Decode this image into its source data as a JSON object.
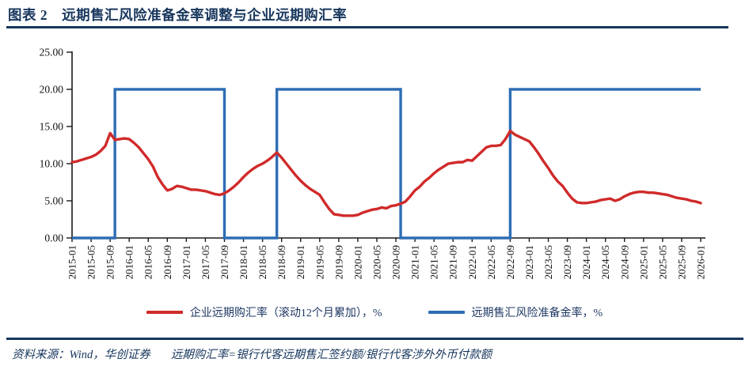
{
  "header": {
    "title": "图表 2　远期售汇风险准备金率调整与企业远期购汇率"
  },
  "legend": [
    {
      "label": "企业远期购汇率（滚动12个月累加），%",
      "color": "#d02a2a"
    },
    {
      "label": "远期售汇风险准备金率，%",
      "color": "#2e6db4"
    }
  ],
  "footer": {
    "source": "资料来源：Wind，华创证券",
    "note": "远期购汇率=银行代客远期售汇签约额/银行代客涉外外币付款额"
  },
  "colors": {
    "navy": "#17365d",
    "red": "#d02a2a",
    "blue": "#2e6db4",
    "axis": "#1a1a1a"
  },
  "chart_data": {
    "type": "line",
    "title": "图表 2　远期售汇风险准备金率调整与企业远期购汇率",
    "xlabel": "",
    "ylabel": "",
    "x_start": "2015-01",
    "x_end": "2026-01",
    "frequency": "monthly",
    "ylim": [
      0,
      25
    ],
    "grid": false,
    "legend_position": "bottom",
    "y_tick_labels": [
      "0.00",
      "5.00",
      "10.00",
      "15.00",
      "20.00",
      "25.00"
    ],
    "y_tick_values": [
      0,
      5,
      10,
      15,
      20,
      25
    ],
    "x_tick_labels": [
      "2015-01",
      "2015-05",
      "2015-09",
      "2016-01",
      "2016-05",
      "2016-09",
      "2017-01",
      "2017-05",
      "2017-09",
      "2018-01",
      "2018-05",
      "2018-09",
      "2019-01",
      "2019-05",
      "2019-09",
      "2020-01",
      "2020-05",
      "2020-09",
      "2021-01",
      "2021-05",
      "2021-09",
      "2022-01",
      "2022-05",
      "2022-09",
      "2023-01",
      "2023-05",
      "2023-09",
      "2024-01",
      "2024-05",
      "2024-09",
      "2025-01",
      "2025-05",
      "2025-09",
      "2026-01"
    ],
    "series": [
      {
        "name": "企业远期购汇率（滚动12个月累加），%",
        "color": "#d02a2a",
        "type": "line",
        "values": [
          10.2,
          10.3,
          10.5,
          10.7,
          10.9,
          11.2,
          11.7,
          12.4,
          14.1,
          13.2,
          13.3,
          13.4,
          13.3,
          12.8,
          12.2,
          11.4,
          10.6,
          9.6,
          8.2,
          7.2,
          6.4,
          6.6,
          7.0,
          6.9,
          6.7,
          6.5,
          6.5,
          6.4,
          6.3,
          6.1,
          5.9,
          5.8,
          6.0,
          6.4,
          6.9,
          7.5,
          8.2,
          8.8,
          9.3,
          9.7,
          10.0,
          10.4,
          10.9,
          11.5,
          10.8,
          10.0,
          9.2,
          8.4,
          7.7,
          7.1,
          6.6,
          6.2,
          5.8,
          4.8,
          3.9,
          3.2,
          3.1,
          3.0,
          3.0,
          3.0,
          3.1,
          3.4,
          3.6,
          3.8,
          3.9,
          4.1,
          4.0,
          4.3,
          4.4,
          4.6,
          4.9,
          5.6,
          6.4,
          6.9,
          7.6,
          8.1,
          8.7,
          9.2,
          9.6,
          10.0,
          10.1,
          10.2,
          10.2,
          10.5,
          10.4,
          11.0,
          11.6,
          12.2,
          12.4,
          12.4,
          12.5,
          13.3,
          14.4,
          13.9,
          13.6,
          13.3,
          13.0,
          12.2,
          11.3,
          10.3,
          9.4,
          8.4,
          7.6,
          7.0,
          6.1,
          5.3,
          4.8,
          4.7,
          4.7,
          4.8,
          4.9,
          5.1,
          5.2,
          5.3,
          5.0,
          5.2,
          5.6,
          5.9,
          6.1,
          6.2,
          6.2,
          6.1,
          6.1,
          6.0,
          5.9,
          5.8,
          5.6,
          5.4,
          5.3,
          5.2,
          5.0,
          4.9,
          4.7
        ]
      },
      {
        "name": "远期售汇风险准备金率，%",
        "color": "#2e6db4",
        "type": "step",
        "segments": [
          {
            "from": "2015-01",
            "to": "2015-09",
            "value": 0
          },
          {
            "from": "2015-10",
            "to": "2017-08",
            "value": 20
          },
          {
            "from": "2017-09",
            "to": "2018-07",
            "value": 0
          },
          {
            "from": "2018-08",
            "to": "2020-09",
            "value": 20
          },
          {
            "from": "2020-10",
            "to": "2022-08",
            "value": 0
          },
          {
            "from": "2022-09",
            "to": "2026-01",
            "value": 20
          }
        ]
      }
    ]
  }
}
